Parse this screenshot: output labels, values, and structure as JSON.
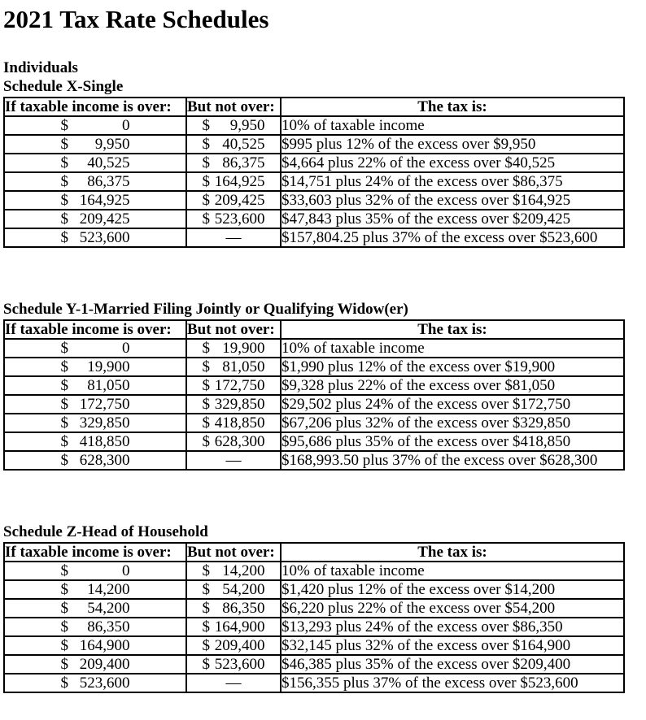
{
  "page": {
    "title": "2021 Tax Rate Schedules",
    "group_label": "Individuals"
  },
  "currency_symbol": "$",
  "table_headers": {
    "over": "If taxable income is over:",
    "not_over": "But not over:",
    "tax": "The tax is:"
  },
  "schedules": [
    {
      "title": "Schedule X-Single",
      "rows": [
        {
          "over": "0",
          "not_over": "9,950",
          "tax": "10% of taxable income"
        },
        {
          "over": "9,950",
          "not_over": "40,525",
          "tax": "$995 plus 12% of the excess over $9,950"
        },
        {
          "over": "40,525",
          "not_over": "86,375",
          "tax": "$4,664 plus 22% of the excess over $40,525"
        },
        {
          "over": "86,375",
          "not_over": "164,925",
          "tax": "$14,751 plus 24% of the excess over $86,375"
        },
        {
          "over": "164,925",
          "not_over": "209,425",
          "tax": "$33,603 plus 32% of the excess over $164,925"
        },
        {
          "over": "209,425",
          "not_over": "523,600",
          "tax": "$47,843 plus 35% of the excess over $209,425"
        },
        {
          "over": "523,600",
          "not_over": "—",
          "tax": "$157,804.25 plus 37% of the excess over $523,600"
        }
      ]
    },
    {
      "title": "Schedule Y-1-Married Filing Jointly or Qualifying Widow(er)",
      "rows": [
        {
          "over": "0",
          "not_over": "19,900",
          "tax": "10% of taxable income"
        },
        {
          "over": "19,900",
          "not_over": "81,050",
          "tax": "$1,990 plus 12% of the excess over $19,900"
        },
        {
          "over": "81,050",
          "not_over": "172,750",
          "tax": "$9,328 plus 22% of the excess over $81,050"
        },
        {
          "over": "172,750",
          "not_over": "329,850",
          "tax": "$29,502 plus 24% of the excess over $172,750"
        },
        {
          "over": "329,850",
          "not_over": "418,850",
          "tax": "$67,206 plus 32% of the excess over $329,850"
        },
        {
          "over": "418,850",
          "not_over": "628,300",
          "tax": "$95,686 plus 35% of the excess over $418,850"
        },
        {
          "over": "628,300",
          "not_over": "—",
          "tax": "$168,993.50 plus 37% of the excess over $628,300"
        }
      ]
    },
    {
      "title": "Schedule Z-Head of Household",
      "rows": [
        {
          "over": "0",
          "not_over": "14,200",
          "tax": "10% of taxable income"
        },
        {
          "over": "14,200",
          "not_over": "54,200",
          "tax": "$1,420 plus 12% of the excess over $14,200"
        },
        {
          "over": "54,200",
          "not_over": "86,350",
          "tax": "$6,220 plus 22% of the excess over $54,200"
        },
        {
          "over": "86,350",
          "not_over": "164,900",
          "tax": "$13,293 plus 24% of the excess over $86,350"
        },
        {
          "over": "164,900",
          "not_over": "209,400",
          "tax": "$32,145 plus 32% of the excess over $164,900"
        },
        {
          "over": "209,400",
          "not_over": "523,600",
          "tax": "$46,385 plus 35% of the excess over $209,400"
        },
        {
          "over": "523,600",
          "not_over": "—",
          "tax": "$156,355 plus 37% of the excess over $523,600"
        }
      ]
    }
  ]
}
